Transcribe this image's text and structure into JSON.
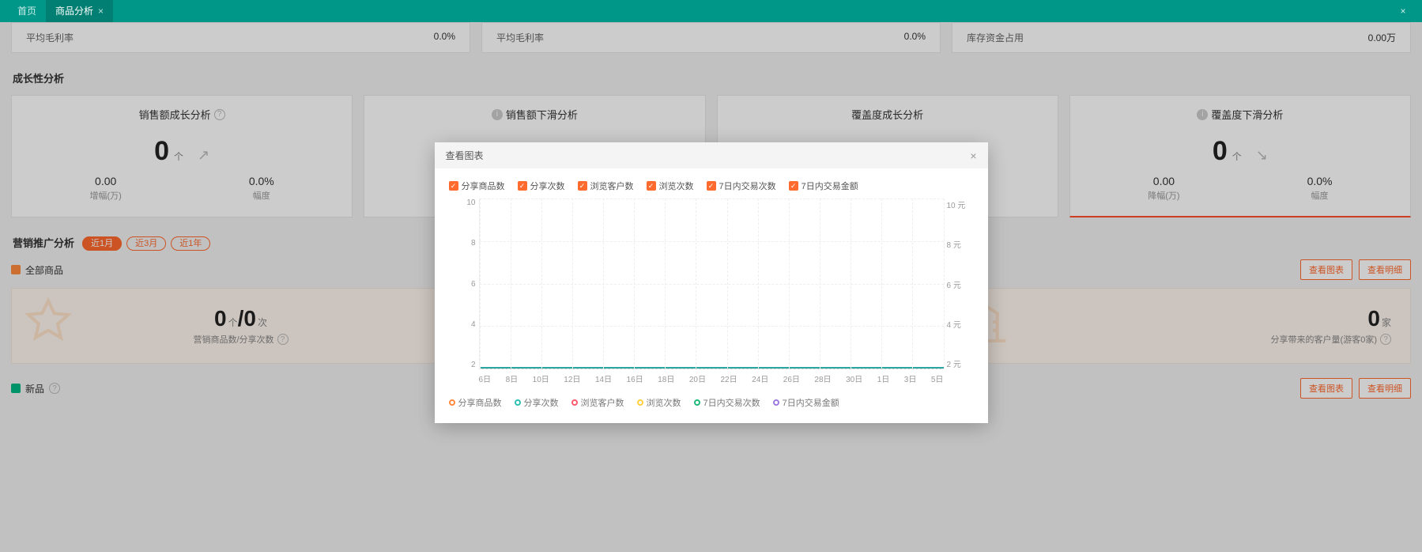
{
  "topbar": {
    "home": "首页",
    "active_tab": "商品分析"
  },
  "metric_cards": [
    {
      "label": "平均毛利率",
      "value": "0.0%"
    },
    {
      "label": "平均毛利率",
      "value": "0.0%"
    },
    {
      "label": "库存资金占用",
      "value": "0.00万"
    }
  ],
  "growth": {
    "title": "成长性分析",
    "cards": [
      {
        "title": "销售额成长分析",
        "info_style": "light",
        "big": "0",
        "unit": "个",
        "trend": "up",
        "sub": [
          {
            "v": "0.00",
            "l": "增幅(万)"
          },
          {
            "v": "0.0%",
            "l": "幅度"
          }
        ],
        "red": false
      },
      {
        "title": "销售额下滑分析",
        "info_style": "dark",
        "red": false
      },
      {
        "title": "覆盖度成长分析",
        "info_style": "none",
        "red": false
      },
      {
        "title": "覆盖度下滑分析",
        "info_style": "dark",
        "big": "0",
        "unit": "个",
        "trend": "down",
        "sub": [
          {
            "v": "0.00",
            "l": "降幅(万)"
          },
          {
            "v": "0.0%",
            "l": "幅度"
          }
        ],
        "red": true
      }
    ]
  },
  "marketing": {
    "title": "营销推广分析",
    "periods": [
      "近1月",
      "近3月",
      "近1年"
    ],
    "active_period": 0,
    "all_goods": "全部商品",
    "new_goods": "新品",
    "btn_chart": "查看图表",
    "btn_detail": "查看明细",
    "card1": {
      "big": "0",
      "unit1": "个",
      "mid": "/0",
      "unit2": "次",
      "sub": "营销商品数/分享次数"
    },
    "card3": {
      "big": "0",
      "unit": "家",
      "sub": "分享带来的客户量(游客0家)"
    }
  },
  "modal": {
    "title": "查看图表",
    "checkboxes": [
      "分享商品数",
      "分享次数",
      "浏览客户数",
      "浏览次数",
      "7日内交易次数",
      "7日内交易金额"
    ],
    "y_left": [
      "10",
      "8",
      "6",
      "4",
      "2"
    ],
    "y_right": [
      "10 元",
      "8 元",
      "6 元",
      "4 元",
      "2 元"
    ],
    "x_labels": [
      "6日",
      "8日",
      "10日",
      "12日",
      "14日",
      "16日",
      "18日",
      "20日",
      "22日",
      "24日",
      "26日",
      "28日",
      "30日",
      "1日",
      "3日",
      "5日"
    ],
    "legend": [
      {
        "label": "分享商品数",
        "color": "#ff8a3d"
      },
      {
        "label": "分享次数",
        "color": "#2ac0b4"
      },
      {
        "label": "浏览客户数",
        "color": "#ff5a6e"
      },
      {
        "label": "浏览次数",
        "color": "#ffcf3d"
      },
      {
        "label": "7日内交易次数",
        "color": "#1fb97a"
      },
      {
        "label": "7日内交易金额",
        "color": "#9d7be0"
      }
    ]
  }
}
